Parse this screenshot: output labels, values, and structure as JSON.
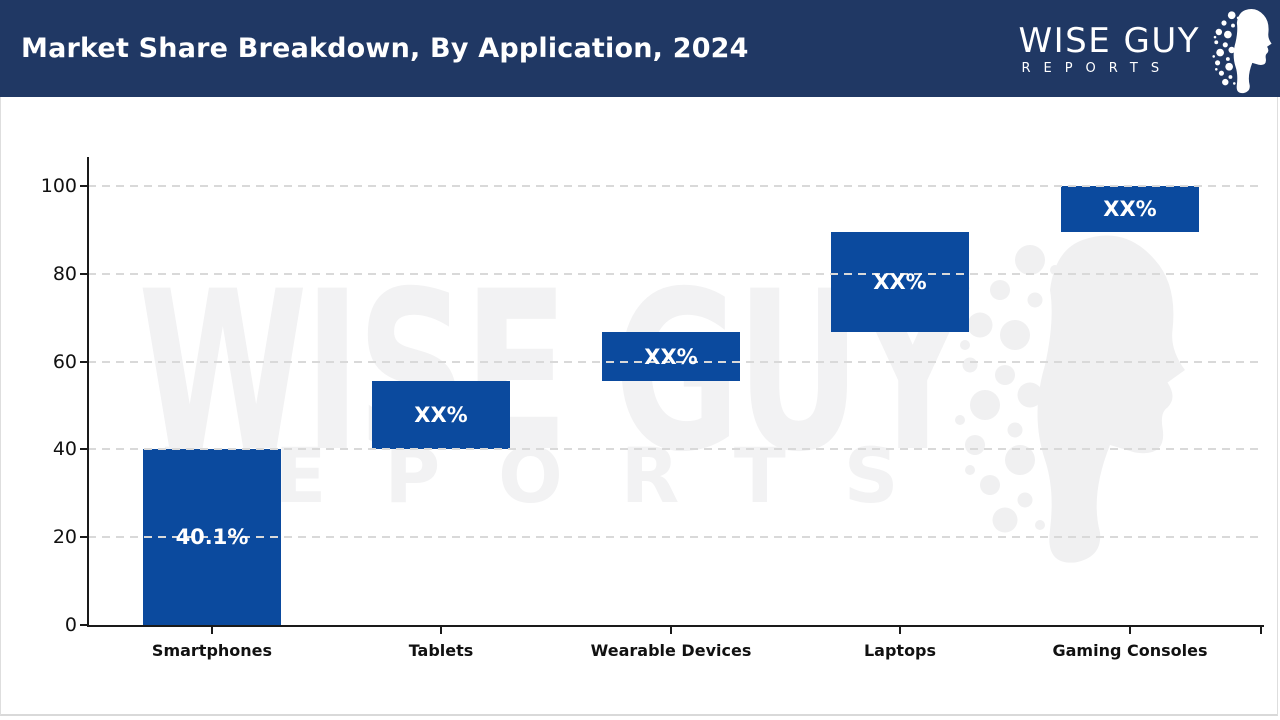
{
  "header": {
    "title": "Market Share Breakdown, By Application, 2024",
    "bg_color": "#203864",
    "text_color": "#ffffff",
    "logo": {
      "line1": "WISE GUY",
      "line2": "REPORTS"
    }
  },
  "watermark": {
    "line1": "WISE GUY",
    "line2": "REPORTS"
  },
  "chart_data": {
    "type": "bar",
    "subtype": "waterfall (cumulative market-share steps)",
    "title": "Market Share Breakdown, By Application, 2024",
    "categories": [
      "Smartphones",
      "Tablets",
      "Wearable Devices",
      "Laptops",
      "Gaming Consoles"
    ],
    "segments": [
      {
        "category": "Smartphones",
        "base": 0,
        "top": 40.1,
        "label": "40.1%"
      },
      {
        "category": "Tablets",
        "base": 40.1,
        "top": 55.5,
        "label": "XX%"
      },
      {
        "category": "Wearable Devices",
        "base": 55.5,
        "top": 66.8,
        "label": "XX%"
      },
      {
        "category": "Laptops",
        "base": 66.8,
        "top": 89.5,
        "label": "XX%"
      },
      {
        "category": "Gaming Consoles",
        "base": 89.5,
        "top": 100,
        "label": "XX%"
      }
    ],
    "xlabel": "",
    "ylabel": "",
    "ylim": [
      0,
      100
    ],
    "yticks": [
      0,
      20,
      40,
      60,
      80,
      100
    ],
    "grid": "dashed-horizontal",
    "gridline_color": "#d9d9d9",
    "axis_color": "#1a1a1a",
    "bar_color": "#0b4a9e",
    "bar_label_color": "#ffffff",
    "legend": "none"
  }
}
